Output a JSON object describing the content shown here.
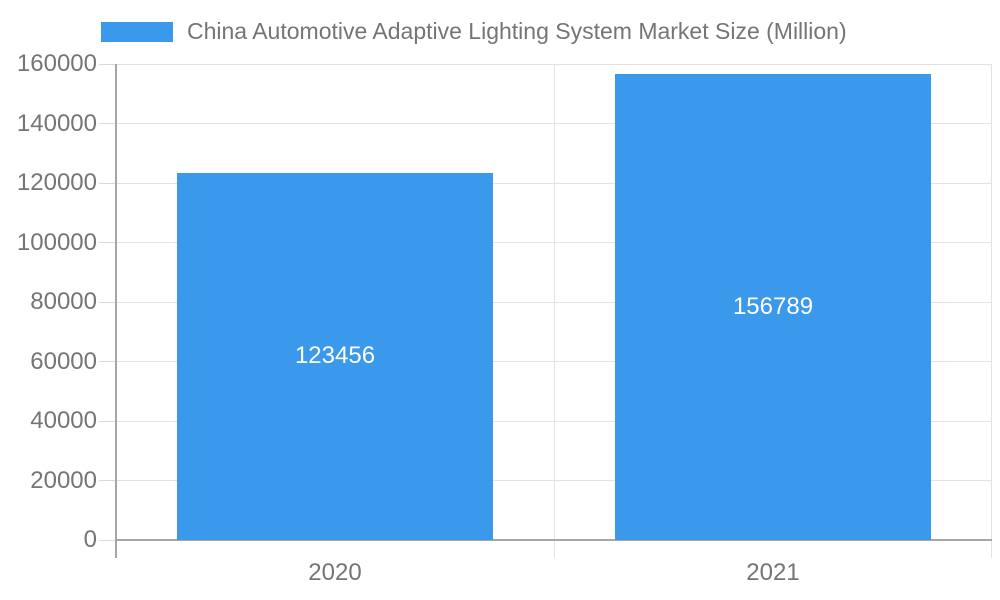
{
  "legend": {
    "label": "China Automotive Adaptive Lighting System Market Size (Million)"
  },
  "chart_data": {
    "type": "bar",
    "title": "China Automotive Adaptive Lighting System Market Size (Million)",
    "categories": [
      "2020",
      "2021"
    ],
    "values": [
      123456,
      156789
    ],
    "data_labels": [
      "123456",
      "156789"
    ],
    "series": [
      {
        "name": "China Automotive Adaptive Lighting System Market Size (Million)",
        "values": [
          123456,
          156789
        ]
      }
    ],
    "xlabel": "",
    "ylabel": "",
    "ylim": [
      0,
      160000
    ],
    "yticks": [
      0,
      20000,
      40000,
      60000,
      80000,
      100000,
      120000,
      140000,
      160000
    ],
    "grid": true,
    "legend_position": "top-left"
  },
  "colors": {
    "bar": "#3B99EC",
    "axis_text": "#757575",
    "axis_line": "#A6A6A6",
    "gridline": "#E3E3E3",
    "tick": "#D9D9D9",
    "data_label": "#FFFFFF",
    "background": "#FFFFFF"
  }
}
